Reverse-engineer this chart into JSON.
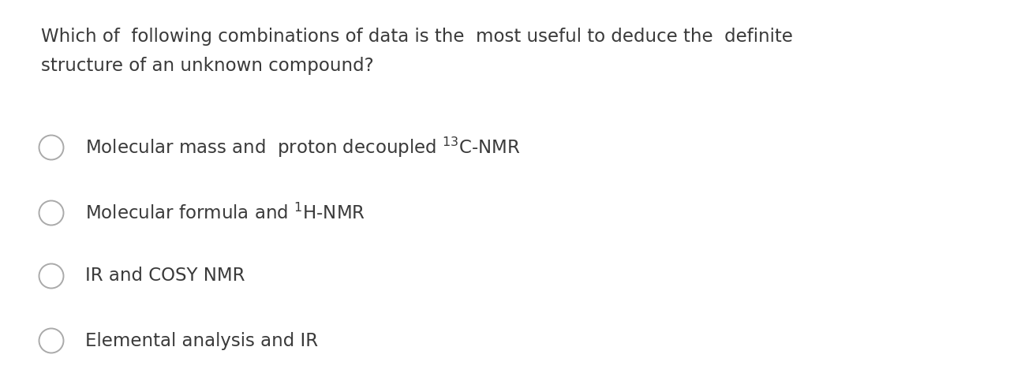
{
  "background_color": "#ffffff",
  "question_line1": "Which of  following combinations of data is the  most useful to deduce the  definite",
  "question_line2": "structure of an unknown compound?",
  "options": [
    [
      "Molecular mass and  proton decoupled ",
      "13",
      "C-NMR"
    ],
    [
      "Molecular formula and ",
      "1",
      "H-NMR"
    ],
    [
      "IR and COSY NMR",
      "",
      ""
    ],
    [
      "Elemental analysis and IR",
      "",
      ""
    ]
  ],
  "text_color": "#3a3a3a",
  "circle_edge_color": "#aaaaaa",
  "circle_linewidth": 1.4,
  "question_fontsize": 16.5,
  "option_fontsize": 16.5,
  "fig_width": 12.94,
  "fig_height": 4.92,
  "dpi": 100
}
